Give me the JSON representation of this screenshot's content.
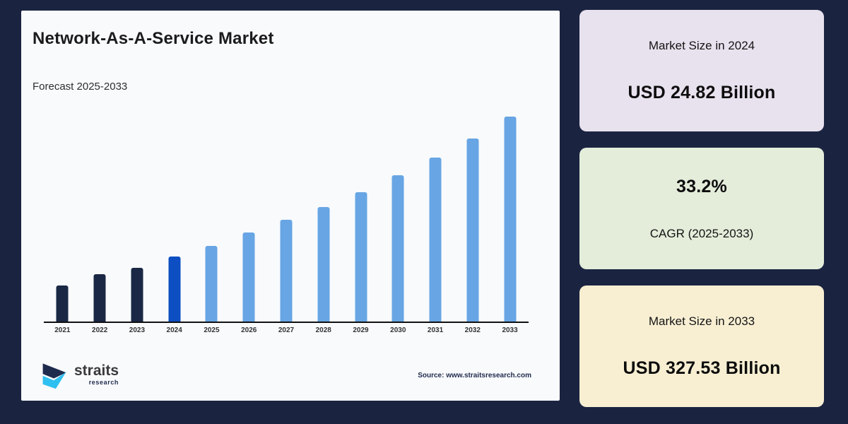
{
  "header": {
    "title": "Network-As-A-Service Market",
    "subtitle": "Forecast 2025-2033"
  },
  "chart_data": {
    "type": "bar",
    "title": "Network-As-A-Service Market",
    "subtitle": "Forecast 2025-2033",
    "categories": [
      "2021",
      "2022",
      "2023",
      "2024",
      "2025",
      "2026",
      "2027",
      "2028",
      "2029",
      "2030",
      "2031",
      "2032",
      "2033"
    ],
    "values": [
      17.6,
      23.2,
      26.3,
      31.8,
      37.0,
      43.3,
      49.5,
      55.7,
      63.0,
      71.3,
      79.9,
      89.3,
      100
    ],
    "bar_roles": [
      "historical",
      "historical",
      "historical",
      "base_year",
      "forecast",
      "forecast",
      "forecast",
      "forecast",
      "forecast",
      "forecast",
      "forecast",
      "forecast",
      "forecast"
    ],
    "xlabel": "",
    "ylabel": "",
    "ylim": [
      0,
      100
    ],
    "grid": false,
    "y_axis_shown": false,
    "legend": "none",
    "value_unit_note": "relative bar height index, max year 2033 = 100; no y-axis ticks shown",
    "anchor_values": {
      "2024": "USD 24.82 Billion",
      "2033": "USD 327.53 Billion",
      "cagr_2025_2033": "33.2%"
    }
  },
  "cards": [
    {
      "label": "Market Size in 2024",
      "value": "USD 24.82 Billion",
      "bg_key": "card_2024_bg",
      "value_position": "below"
    },
    {
      "label": "CAGR (2025-2033)",
      "value": "33.2%",
      "bg_key": "card_cagr_bg",
      "value_position": "above"
    },
    {
      "label": "Market Size in 2033",
      "value": "USD 327.53 Billion",
      "bg_key": "card_2033_bg",
      "value_position": "below"
    }
  ],
  "footer": {
    "logo_text": "straits",
    "logo_subtext": "research",
    "source": "Source: www.straitsresearch.com"
  },
  "colors": {
    "background": "#1a2441",
    "panel": "#f8fafc",
    "axis": "#111111",
    "bar_historical": "#1a2845",
    "bar_base_year": "#0d4fc3",
    "bar_forecast": "#68a5e4",
    "card_2024_bg": "#e8e1ee",
    "card_cagr_bg": "#e4edda",
    "card_2033_bg": "#f8efd3",
    "logo_navy": "#1f2b4d",
    "logo_cyan": "#2ec0f0",
    "source_text": "#1f2b4d"
  }
}
